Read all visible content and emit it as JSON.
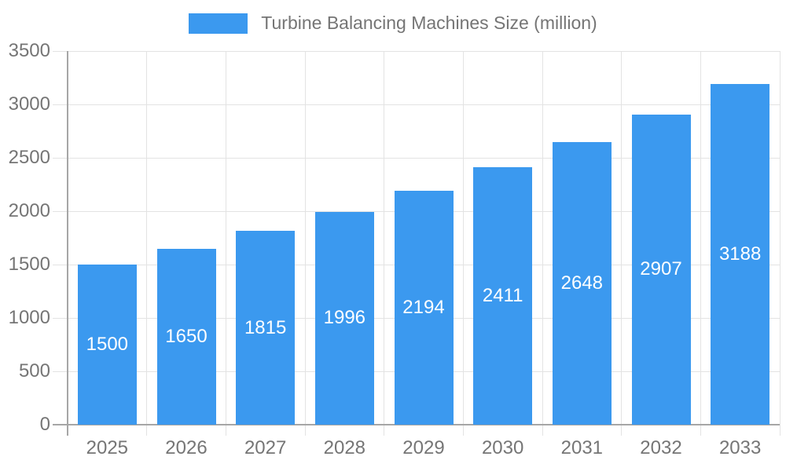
{
  "legend": {
    "label": "Turbine Balancing Machines Size (million)",
    "swatch_color": "#3B99EF"
  },
  "chart_data": {
    "type": "bar",
    "title": "Turbine Balancing Machines Size (million)",
    "categories": [
      "2025",
      "2026",
      "2027",
      "2028",
      "2029",
      "2030",
      "2031",
      "2032",
      "2033"
    ],
    "values": [
      1500,
      1650,
      1815,
      1996,
      2194,
      2411,
      2648,
      2907,
      3188
    ],
    "xlabel": "",
    "ylabel": "",
    "ylim": [
      0,
      3500
    ],
    "yticks": [
      0,
      500,
      1000,
      1500,
      2000,
      2500,
      3000,
      3500
    ],
    "grid": true,
    "legend_position": "top",
    "bar_color": "#3B99EF",
    "value_label_color": "#FFFFFF",
    "grid_color": "#E3E3E3",
    "axis_color": "#A6A6A6",
    "text_color": "#757575"
  }
}
